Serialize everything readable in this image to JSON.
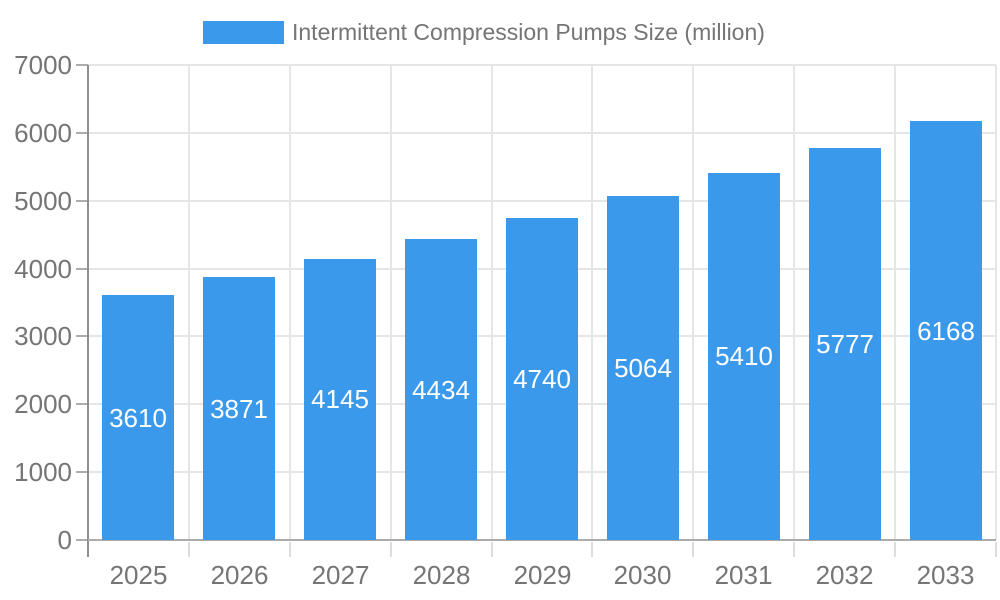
{
  "chart_data": {
    "type": "bar",
    "title": "",
    "legend_entries": [
      "Intermittent Compression Pumps Size (million)"
    ],
    "legend_position": "top",
    "categories": [
      "2025",
      "2026",
      "2027",
      "2028",
      "2029",
      "2030",
      "2031",
      "2032",
      "2033"
    ],
    "values": [
      3610,
      3871,
      4145,
      4434,
      4740,
      5064,
      5410,
      5777,
      6168
    ],
    "xlabel": "",
    "ylabel": "",
    "ylim": [
      0,
      7000
    ],
    "y_ticks": [
      0,
      1000,
      2000,
      3000,
      4000,
      5000,
      6000,
      7000
    ],
    "grid": true,
    "bar_color": "#3B99EC",
    "value_label_color": "#FFFFFF",
    "axis_text_color": "#757575",
    "gridline_color": "#E6E6E6"
  }
}
